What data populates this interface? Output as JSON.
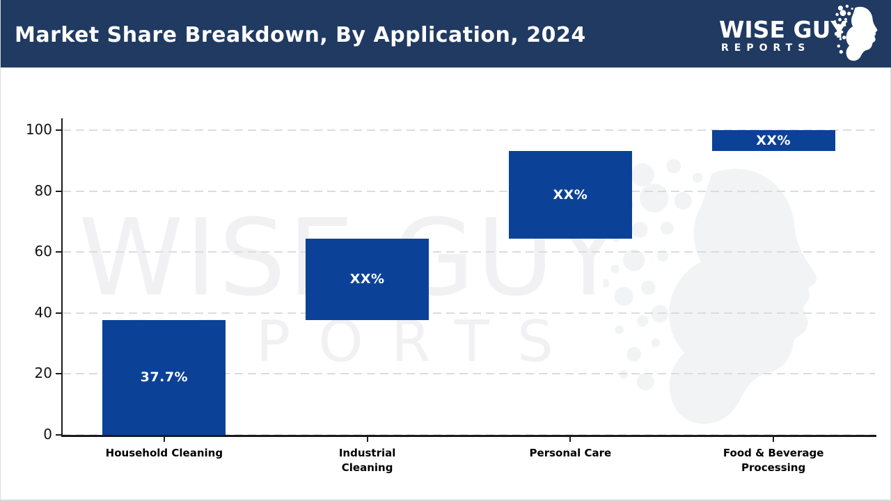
{
  "header": {
    "title": "Market Share Breakdown, By Application, 2024",
    "background": "#203a61",
    "brand": {
      "name": "WISE GUY",
      "subname": "REPORTS"
    }
  },
  "watermark": {
    "line1": "WISE GUY",
    "line2": "REPORTS"
  },
  "chart_data": {
    "type": "bar",
    "subtype": "waterfall",
    "title": "Market Share Breakdown, By Application, 2024",
    "categories": [
      "Household Cleaning",
      "Industrial\nCleaning",
      "Personal Care",
      "Food & Beverage\nProcessing"
    ],
    "bars": [
      {
        "category": "Household Cleaning",
        "start": 0,
        "end": 37.7,
        "label": "37.7%"
      },
      {
        "category": "Industrial Cleaning",
        "start": 37.7,
        "end": 64.4,
        "label": "XX%"
      },
      {
        "category": "Personal Care",
        "start": 64.4,
        "end": 93.2,
        "label": "XX%"
      },
      {
        "category": "Food & Beverage Processing",
        "start": 93.2,
        "end": 100,
        "label": "XX%"
      }
    ],
    "ylim": [
      0,
      100
    ],
    "yticks": [
      0,
      20,
      40,
      60,
      80,
      100
    ],
    "xlabel": "",
    "ylabel": "",
    "grid": "horizontal-dashed",
    "legend": "none",
    "styles": {
      "bar_color": "#0b4297",
      "value_label_color": "#ffffff",
      "gridline_color": "#dcdcdc",
      "axis_color": "#1a1a1a"
    }
  }
}
